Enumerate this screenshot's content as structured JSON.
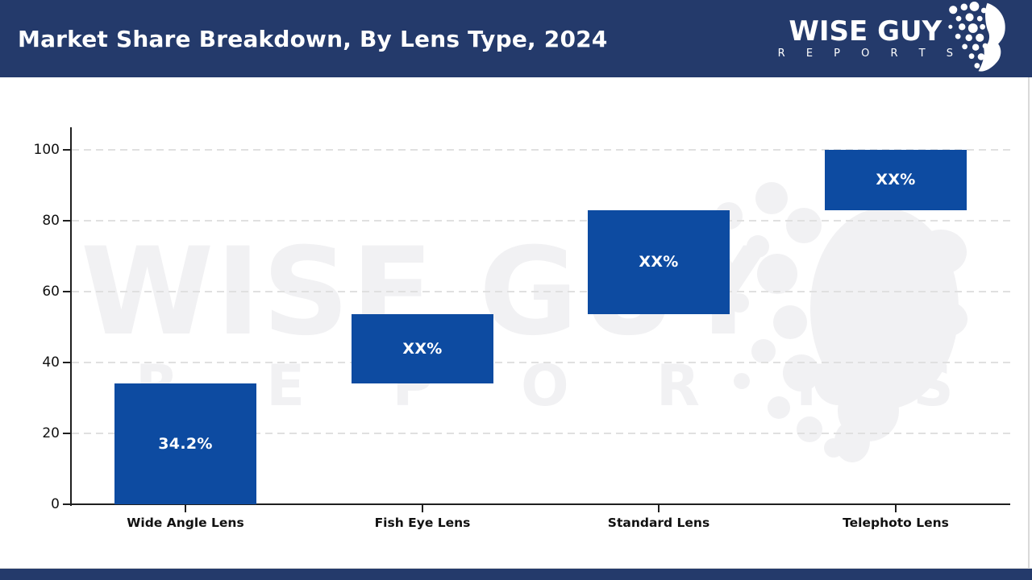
{
  "header": {
    "title": "Market Share Breakdown, By Lens Type, 2024",
    "logo": {
      "line1": "WISE GUY",
      "line2": "R E P O R T S"
    }
  },
  "watermark": {
    "line1": "WISE GUY",
    "line2": "R E P O R T S"
  },
  "colors": {
    "header_bg": "#243a6b",
    "bar": "#0d4ba1",
    "bar_label": "#ffffff",
    "grid": "#e0e0e0",
    "axis": "#1f1f1f",
    "watermark": "#f1f1f3",
    "border": "#d9d9d9"
  },
  "chart_data": {
    "type": "bar",
    "subtype": "floating-waterfall",
    "title": "Market Share Breakdown, By Lens Type, 2024",
    "categories": [
      "Wide Angle Lens",
      "Fish Eye Lens",
      "Standard Lens",
      "Telephoto Lens"
    ],
    "segments": [
      {
        "category": "Wide Angle Lens",
        "start": 0,
        "end": 34.2,
        "label": "34.2%"
      },
      {
        "category": "Fish Eye Lens",
        "start": 34.2,
        "end": 53.6,
        "label": "XX%"
      },
      {
        "category": "Standard Lens",
        "start": 53.6,
        "end": 83.0,
        "label": "XX%"
      },
      {
        "category": "Telephoto Lens",
        "start": 83.0,
        "end": 100,
        "label": "XX%"
      }
    ],
    "xlabel": "",
    "ylabel": "",
    "yticks": [
      0,
      20,
      40,
      60,
      80,
      100
    ],
    "ylim": [
      0,
      106
    ],
    "grid": "horizontal-dashed",
    "legend": null
  }
}
